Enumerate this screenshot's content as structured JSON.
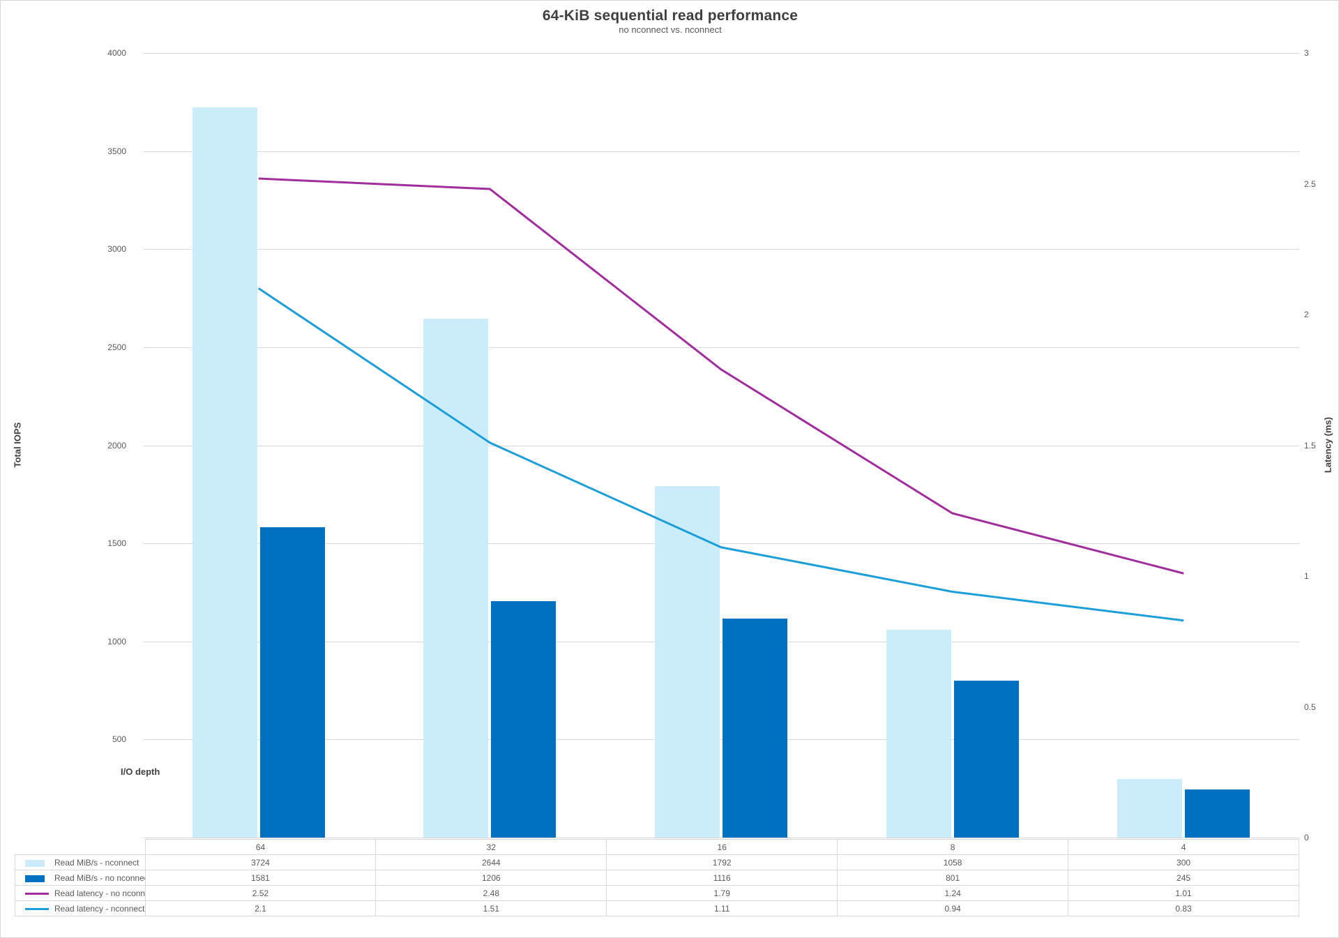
{
  "chart_data": {
    "type": "bar+line-combo",
    "title": "64-KiB sequential read performance",
    "subtitle": "no nconnect vs. nconnect",
    "categories": [
      "64",
      "32",
      "16",
      "8",
      "4"
    ],
    "x_axis_title": "I/O depth",
    "left_axis": {
      "title": "Total IOPS",
      "min": 0,
      "max": 4000,
      "step": 500,
      "tick_labels": [
        "4000",
        "3500",
        "3000",
        "2500",
        "2000",
        "1500",
        "1000",
        "500"
      ]
    },
    "right_axis": {
      "title": "Latency (ms)",
      "min": 0,
      "max": 3,
      "step": 0.5,
      "tick_labels": [
        "3",
        "2.5",
        "2",
        "1.5",
        "1",
        "0.5",
        "0"
      ]
    },
    "grid": true,
    "legend_position": "data-table-left-column",
    "series": [
      {
        "name": "Read MiB/s - nconnect",
        "type": "bar",
        "axis": "left",
        "color": "#cbecfb",
        "values": [
          3724,
          2644,
          1792,
          1058,
          300
        ]
      },
      {
        "name": "Read MiB/s - no nconnect",
        "type": "bar",
        "axis": "left",
        "color": "#0070c0",
        "values": [
          1581,
          1206,
          1116,
          801,
          245
        ]
      },
      {
        "name": "Read latency - no nconnect",
        "type": "line",
        "axis": "right",
        "color": "#a12c9c",
        "values": [
          2.52,
          2.48,
          1.79,
          1.24,
          1.01
        ]
      },
      {
        "name": "Read latency - nconnect",
        "type": "line",
        "axis": "right",
        "color": "#1b9ed9",
        "values": [
          2.1,
          1.51,
          1.11,
          0.94,
          0.83
        ]
      }
    ],
    "gridline_color": "#d9d9d9",
    "table_border_color": "#d9d9d9",
    "text_color": "#595959",
    "title_color": "#3f3f3f"
  }
}
